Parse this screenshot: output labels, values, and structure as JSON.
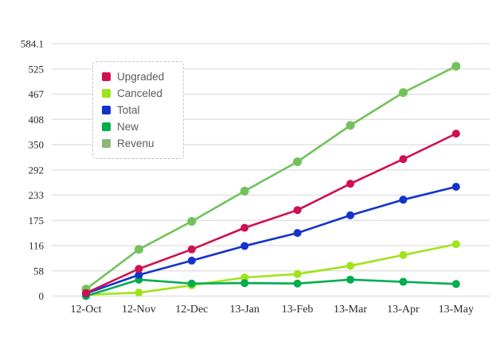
{
  "chart_data": {
    "type": "line",
    "title": "",
    "categories": [
      "12-Oct",
      "12-Nov",
      "12-Dec",
      "13-Jan",
      "13-Feb",
      "13-Mar",
      "13-Apr",
      "13-May"
    ],
    "series": [
      {
        "name": "Upgraded",
        "color": "#D0104E",
        "values": [
          7,
          63,
          108,
          158,
          199,
          260,
          317,
          376
        ]
      },
      {
        "name": "Canceled",
        "color": "#9FE41A",
        "values": [
          3,
          8,
          25,
          43,
          51,
          70,
          95,
          120
        ]
      },
      {
        "name": "Total",
        "color": "#1433CC",
        "values": [
          6,
          49,
          82,
          116,
          146,
          187,
          223,
          253
        ]
      },
      {
        "name": "New",
        "color": "#00AD4F",
        "values": [
          0,
          38,
          29,
          30,
          29,
          38,
          33,
          28
        ]
      },
      {
        "name": "Revenu",
        "color": "#72C25C",
        "legend_color": "#8CB877",
        "values": [
          16,
          108,
          173,
          243,
          311,
          395,
          471,
          532
        ]
      }
    ],
    "y_ticks_top_to_bottom": [
      "584.1",
      "525",
      "467",
      "408",
      "350",
      "292",
      "233",
      "175",
      "116",
      "58",
      "0"
    ],
    "ylim": [
      0,
      584.1
    ],
    "xlabel": "",
    "ylabel": "",
    "grid": true,
    "legend_position": "inset-top-left",
    "draw_order": [
      "Revenu",
      "Canceled",
      "New",
      "Total",
      "Upgraded"
    ],
    "marker": "circle"
  },
  "colors": {
    "background": "#FFFFFF",
    "gridline": "#DDDDDD",
    "axis_label": "#2B2B2B",
    "legend_text": "#5C5C5C",
    "legend_border": "#C3C3C3"
  }
}
